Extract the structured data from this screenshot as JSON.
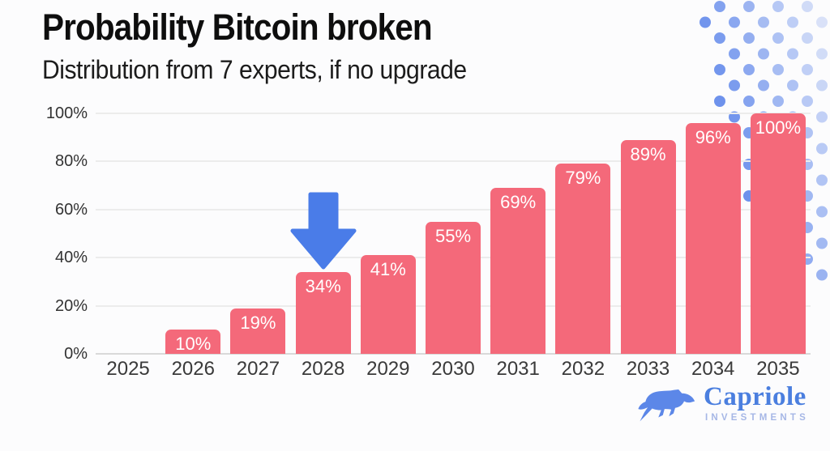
{
  "header": {
    "title": "Probability Bitcoin broken",
    "subtitle": "Distribution from 7 experts, if no upgrade"
  },
  "chart_data": {
    "type": "bar",
    "title": "Probability Bitcoin broken",
    "subtitle": "Distribution from 7 experts, if no upgrade",
    "categories": [
      "2025",
      "2026",
      "2027",
      "2028",
      "2029",
      "2030",
      "2031",
      "2032",
      "2033",
      "2034",
      "2035"
    ],
    "values": [
      0,
      10,
      19,
      34,
      41,
      55,
      69,
      79,
      89,
      96,
      100
    ],
    "bar_labels": [
      "",
      "10%",
      "19%",
      "34%",
      "41%",
      "55%",
      "69%",
      "79%",
      "89%",
      "96%",
      "100%"
    ],
    "xlabel": "",
    "ylabel": "",
    "ylim": [
      0,
      100
    ],
    "yticks": [
      0,
      20,
      40,
      60,
      80,
      100
    ],
    "ytick_labels": [
      "0%",
      "20%",
      "40%",
      "60%",
      "80%",
      "100%"
    ],
    "grid": true,
    "legend": false,
    "bar_color": "#f4697a",
    "bar_label_color": "#ffffff",
    "annotation": {
      "type": "down-arrow",
      "target_category": "2028",
      "color": "#4a7ce8"
    }
  },
  "branding": {
    "name": "Capriole",
    "tagline": "INVESTMENTS",
    "name_color": "#4b7fdf",
    "tagline_color": "#a6b7e6",
    "horse_color": "#5c87e8"
  },
  "decor": {
    "dot_color": "#5e86ea"
  }
}
